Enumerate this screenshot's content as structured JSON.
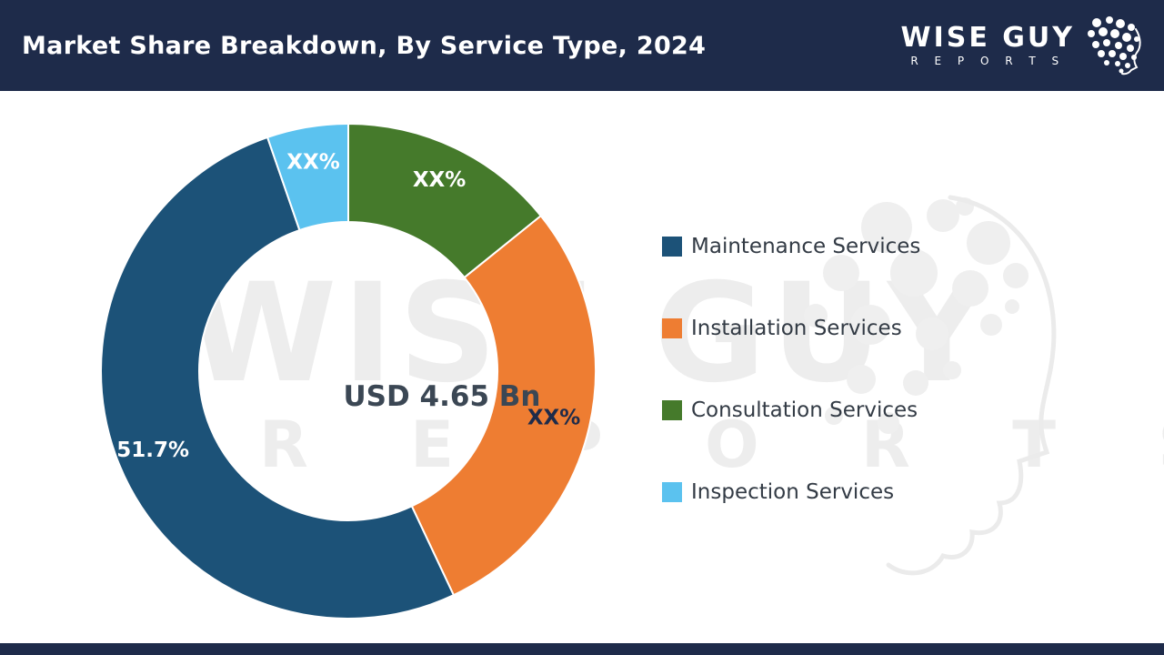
{
  "header": {
    "title": "Market Share Breakdown, By Service Type, 2024",
    "logo": {
      "wordmark": "WISE GUY",
      "subtitle": "R E P O R T S"
    }
  },
  "watermark": {
    "line1": "WISE GUY",
    "line2": "R E P O R T S"
  },
  "theme": {
    "header_bg": "#1e2b4a",
    "footer_bg": "#1e2b4a",
    "background": "#ffffff",
    "center_text_color": "#3b4754",
    "legend_text_color": "#333b45",
    "watermark_color": "#ededed"
  },
  "chart_data": {
    "type": "pie",
    "donut": true,
    "title": "Market Share Breakdown, By Service Type, 2024",
    "center_label": "USD 4.65 Bn",
    "start_angle_deg": 0,
    "clockwise": true,
    "inner_radius_ratio": 0.6,
    "legend_position": "right",
    "slices": [
      {
        "label": "Consultation Services",
        "value": 14.2,
        "text": "XX%",
        "color": "#457a2b",
        "text_color": "#ffffff"
      },
      {
        "label": "Installation Services",
        "value": 28.8,
        "text": "XX%",
        "color": "#ee7d32",
        "text_color": "#1e2b4a"
      },
      {
        "label": "Maintenance Services",
        "value": 51.7,
        "text": "51.7%",
        "color": "#1c5278",
        "text_color": "#ffffff"
      },
      {
        "label": "Inspection Services",
        "value": 5.3,
        "text": "XX%",
        "color": "#5bc2ef",
        "text_color": "#ffffff"
      }
    ],
    "legend": [
      {
        "label": "Maintenance Services",
        "color": "#1c5278"
      },
      {
        "label": "Installation Services",
        "color": "#ee7d32"
      },
      {
        "label": "Consultation Services",
        "color": "#457a2b"
      },
      {
        "label": "Inspection Services",
        "color": "#5bc2ef"
      }
    ]
  }
}
